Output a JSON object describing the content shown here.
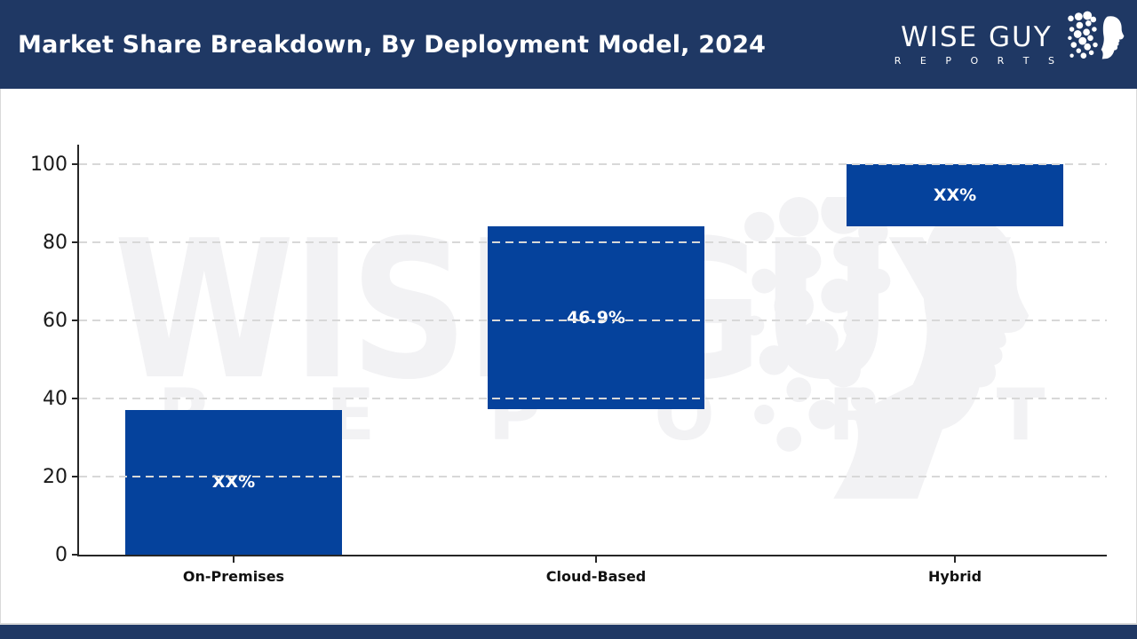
{
  "header": {
    "title": "Market Share Breakdown, By Deployment Model, 2024",
    "logo": {
      "line1": "WISE GUY",
      "line2": "R E P O R T S"
    }
  },
  "watermark": {
    "line1": "WISE GUY",
    "line2": "R E P O R T S"
  },
  "colors": {
    "navy": "#1f3864",
    "bar_blue": "#05429c",
    "grid_gray": "#d8d8d8",
    "watermark_gray": "#f2f2f4",
    "axis_dark": "#262626"
  },
  "chart_data": {
    "type": "bar",
    "variant": "floating-waterfall",
    "title": "Market Share Breakdown, By Deployment Model, 2024",
    "categories": [
      "On-Premises",
      "Cloud-Based",
      "Hybrid"
    ],
    "segments": [
      {
        "category": "On-Premises",
        "start": 0,
        "end": 37.1,
        "label": "XX%"
      },
      {
        "category": "Cloud-Based",
        "start": 37.3,
        "end": 84.1,
        "label": "46.9%",
        "value": 46.9
      },
      {
        "category": "Hybrid",
        "start": 84.1,
        "end": 100,
        "label": "XX%"
      }
    ],
    "ylabel": "",
    "xlabel": "",
    "ylim": [
      0,
      105
    ],
    "yticks": [
      0,
      20,
      40,
      60,
      80,
      100
    ],
    "grid": "horizontal-dashed-over-bars",
    "legend": "none",
    "bar_color": "#05429c"
  }
}
